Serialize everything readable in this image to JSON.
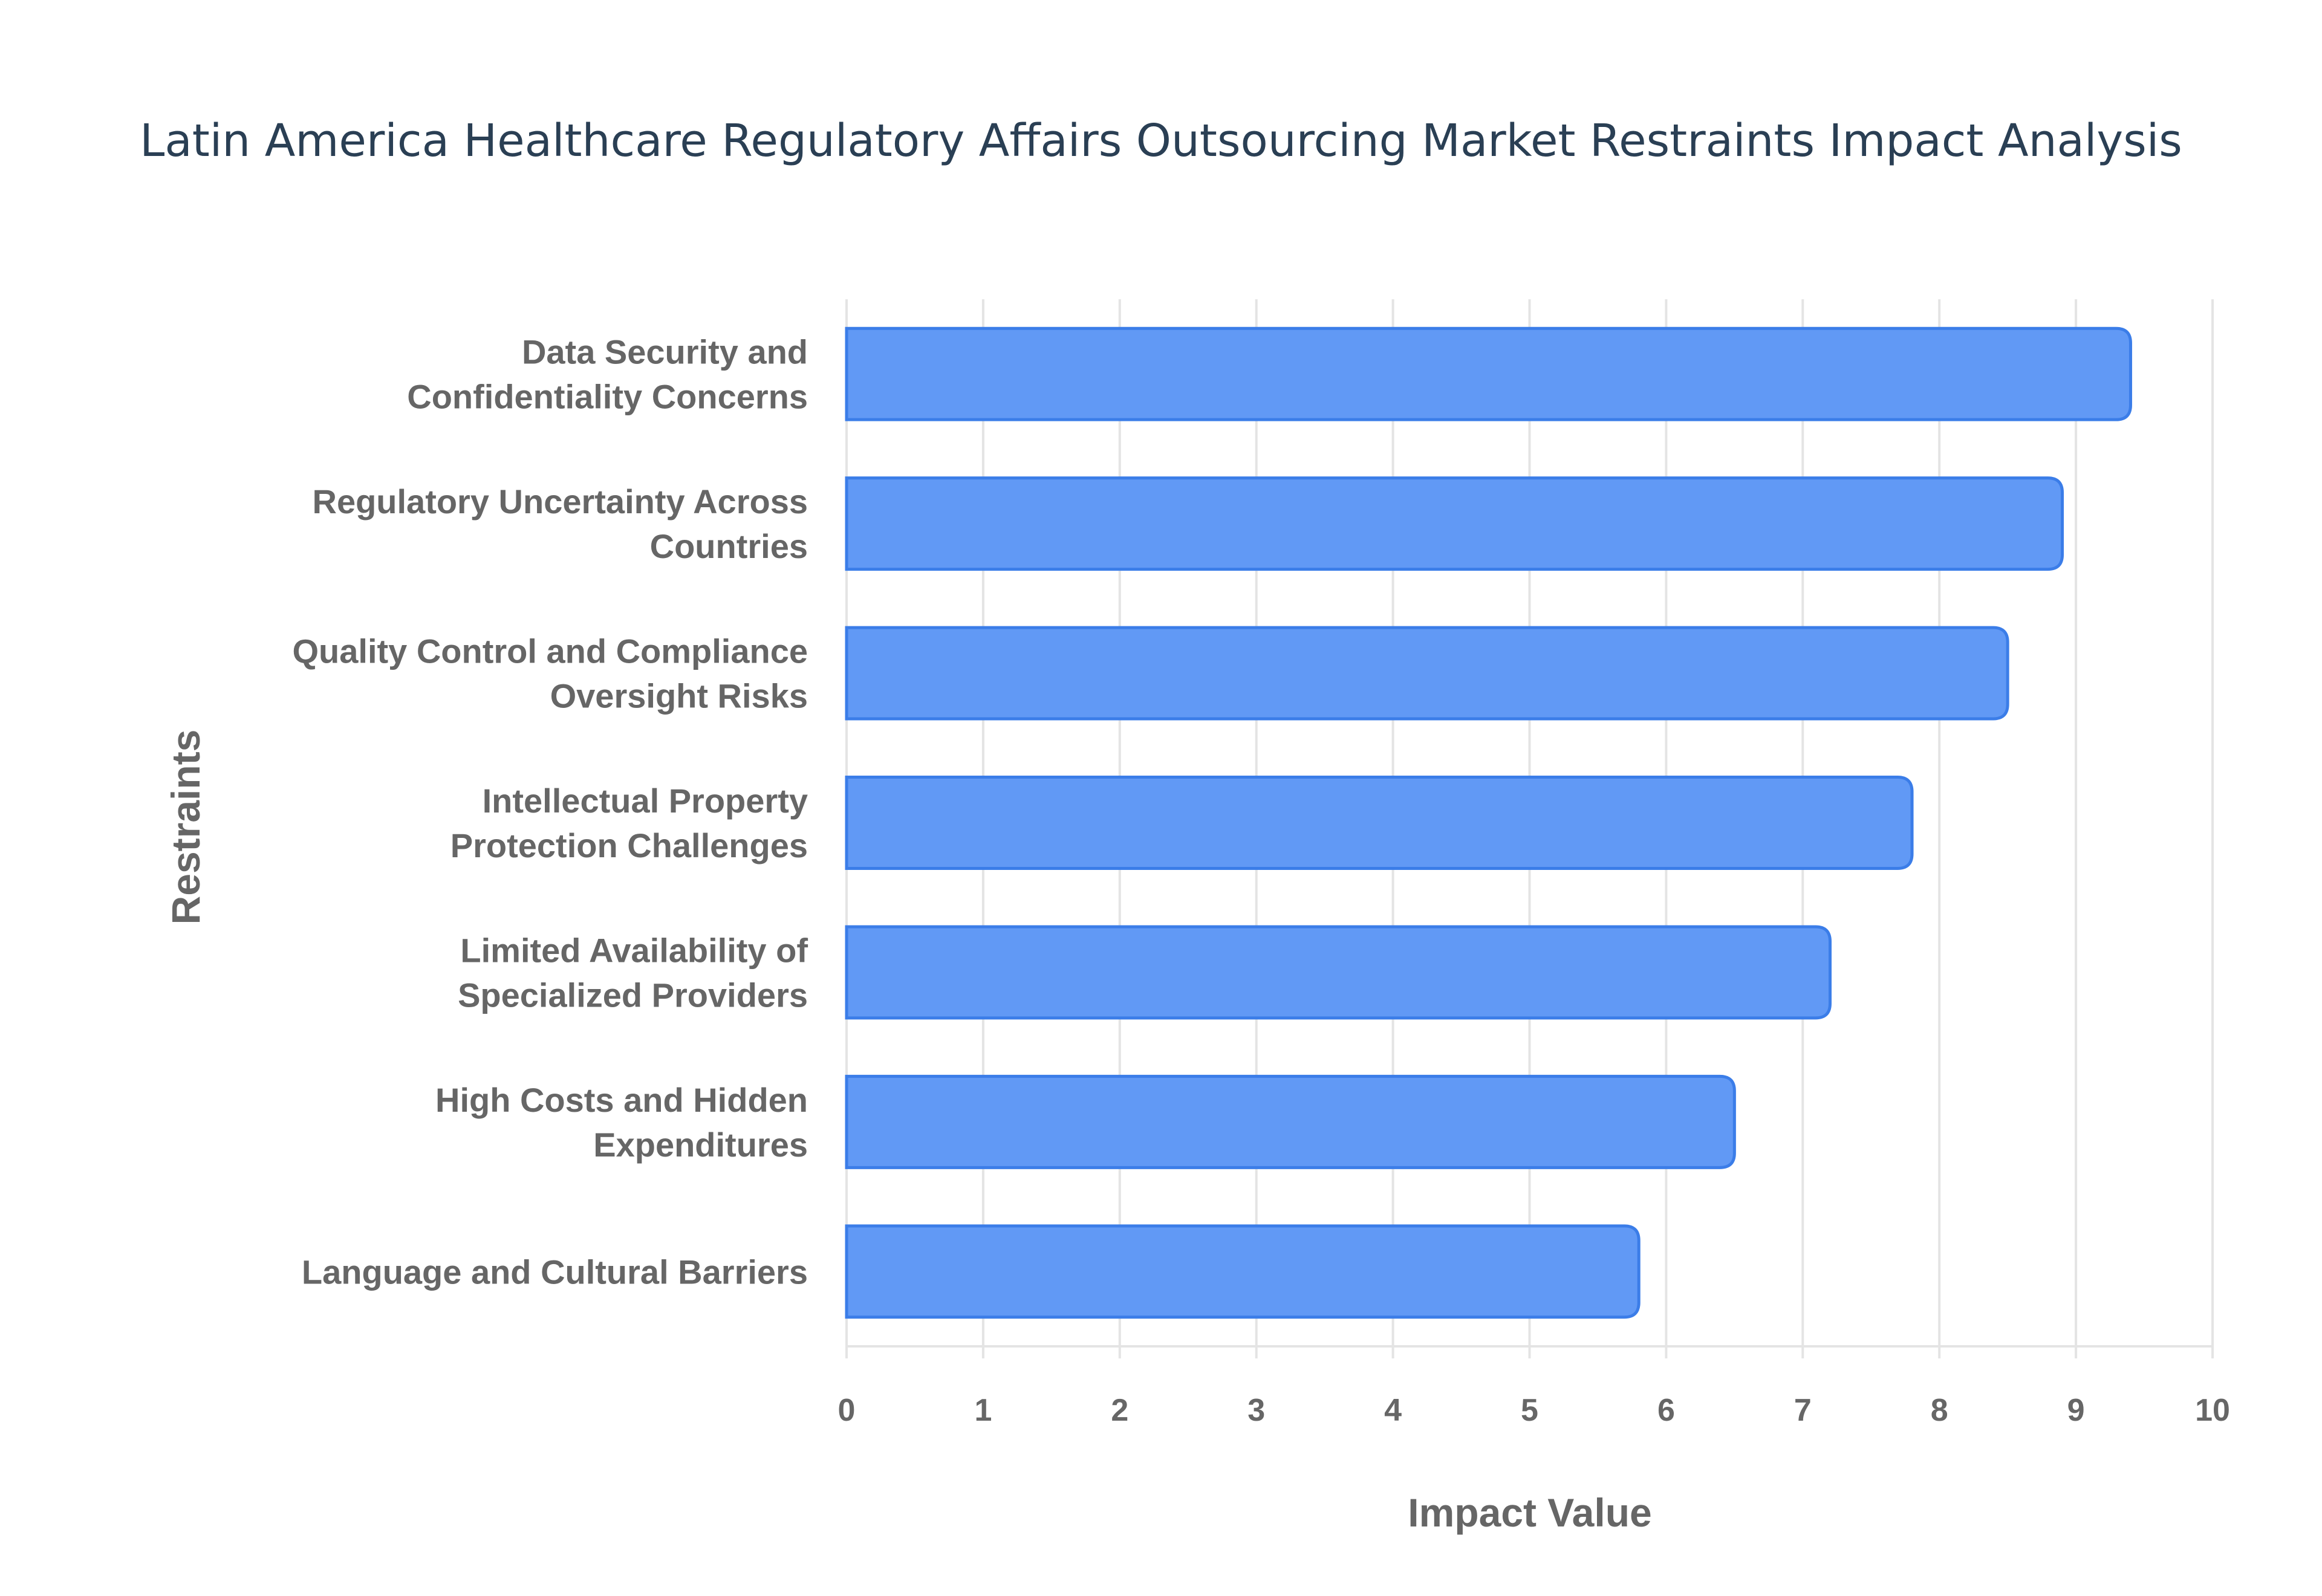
{
  "chart_data": {
    "type": "bar",
    "orientation": "horizontal",
    "title": "Latin America Healthcare Regulatory Affairs Outsourcing Market Restraints Impact Analysis",
    "xlabel": "Impact Value",
    "ylabel": "Restraints",
    "xlim": [
      0,
      10
    ],
    "xticks": [
      "0",
      "1",
      "2",
      "3",
      "4",
      "5",
      "6",
      "7",
      "8",
      "9",
      "10"
    ],
    "grid": true,
    "bar_color": "#6199f5",
    "bar_border_color": "#3b7de8",
    "categories": [
      [
        "Data Security and",
        "Confidentiality Concerns"
      ],
      [
        "Regulatory Uncertainty Across",
        "Countries"
      ],
      [
        "Quality Control and Compliance",
        "Oversight Risks"
      ],
      [
        "Intellectual Property",
        "Protection Challenges"
      ],
      [
        "Limited Availability of",
        "Specialized Providers"
      ],
      [
        "High Costs and Hidden",
        "Expenditures"
      ],
      [
        "Language and Cultural Barriers"
      ]
    ],
    "values": [
      9.4,
      8.9,
      8.5,
      7.8,
      7.2,
      6.5,
      5.8
    ]
  }
}
